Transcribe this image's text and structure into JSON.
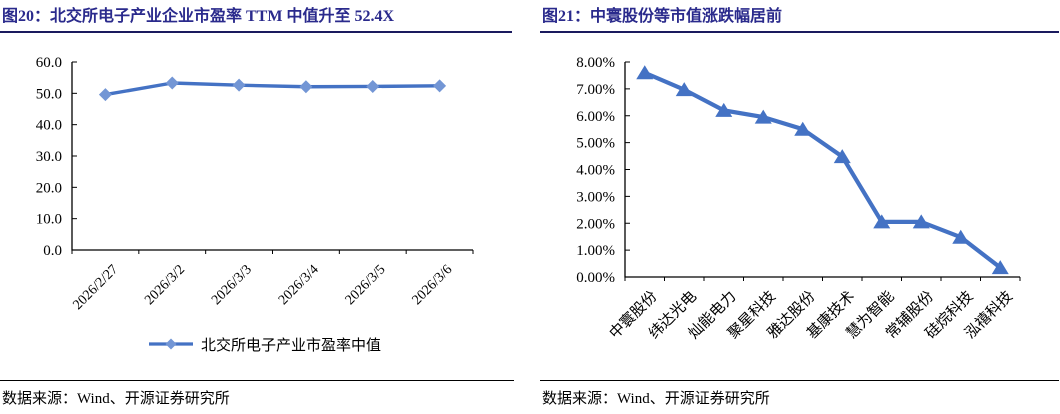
{
  "colors": {
    "accent_line": "#4472C4",
    "left_marker_fill": "#7396D5",
    "right_marker_fill": "#4472C4",
    "axis": "#000000",
    "text": "#000000",
    "title_text": "#2A2A8C",
    "title_underline": "#1A1A5E"
  },
  "panels": [
    {
      "figure_label": "图20",
      "title": "图20：北交所电子产业企业市盈率 TTM 中值升至 52.4X",
      "legend": "北交所电子产业市盈率中值",
      "source": "数据来源：Wind、开源证券研究所"
    },
    {
      "figure_label": "图21",
      "title": "图21：中寰股份等市值涨跌幅居前",
      "source": "数据来源：Wind、开源证券研究所"
    }
  ],
  "chart_data": [
    {
      "type": "line",
      "title": "北交所电子产业企业市盈率TTM中值",
      "marker": "diamond",
      "categories": [
        "2026/2/27",
        "2026/3/2",
        "2026/3/3",
        "2026/3/4",
        "2026/3/5",
        "2026/3/6"
      ],
      "values": [
        49.6,
        53.3,
        52.6,
        52.1,
        52.2,
        52.4
      ],
      "ylim": [
        0,
        60
      ],
      "ytick_step": 10,
      "ytick_format": "f1",
      "xlabel": "",
      "ylabel": "",
      "grid": false,
      "legend": "北交所电子产业市盈率中值",
      "legend_position": "bottom",
      "line_color": "#4472C4",
      "marker_color": "#7396D5",
      "line_width": 3.4
    },
    {
      "type": "line",
      "title": "中寰股份等市值涨跌幅居前",
      "marker": "triangle",
      "categories": [
        "中寰股份",
        "纬达光电",
        "灿能电力",
        "聚星科技",
        "雅达股份",
        "基康技术",
        "慧为智能",
        "常辅股份",
        "硅烷科技",
        "泓禧科技"
      ],
      "values": [
        7.6,
        6.97,
        6.2,
        5.95,
        5.5,
        4.48,
        2.05,
        2.05,
        1.48,
        0.35
      ],
      "ylim": [
        0,
        8
      ],
      "ytick_step": 1,
      "ytick_format": "p2",
      "xlabel": "",
      "ylabel": "",
      "grid": false,
      "line_color": "#4472C4",
      "marker_color": "#4472C4",
      "line_width": 4.2
    }
  ]
}
